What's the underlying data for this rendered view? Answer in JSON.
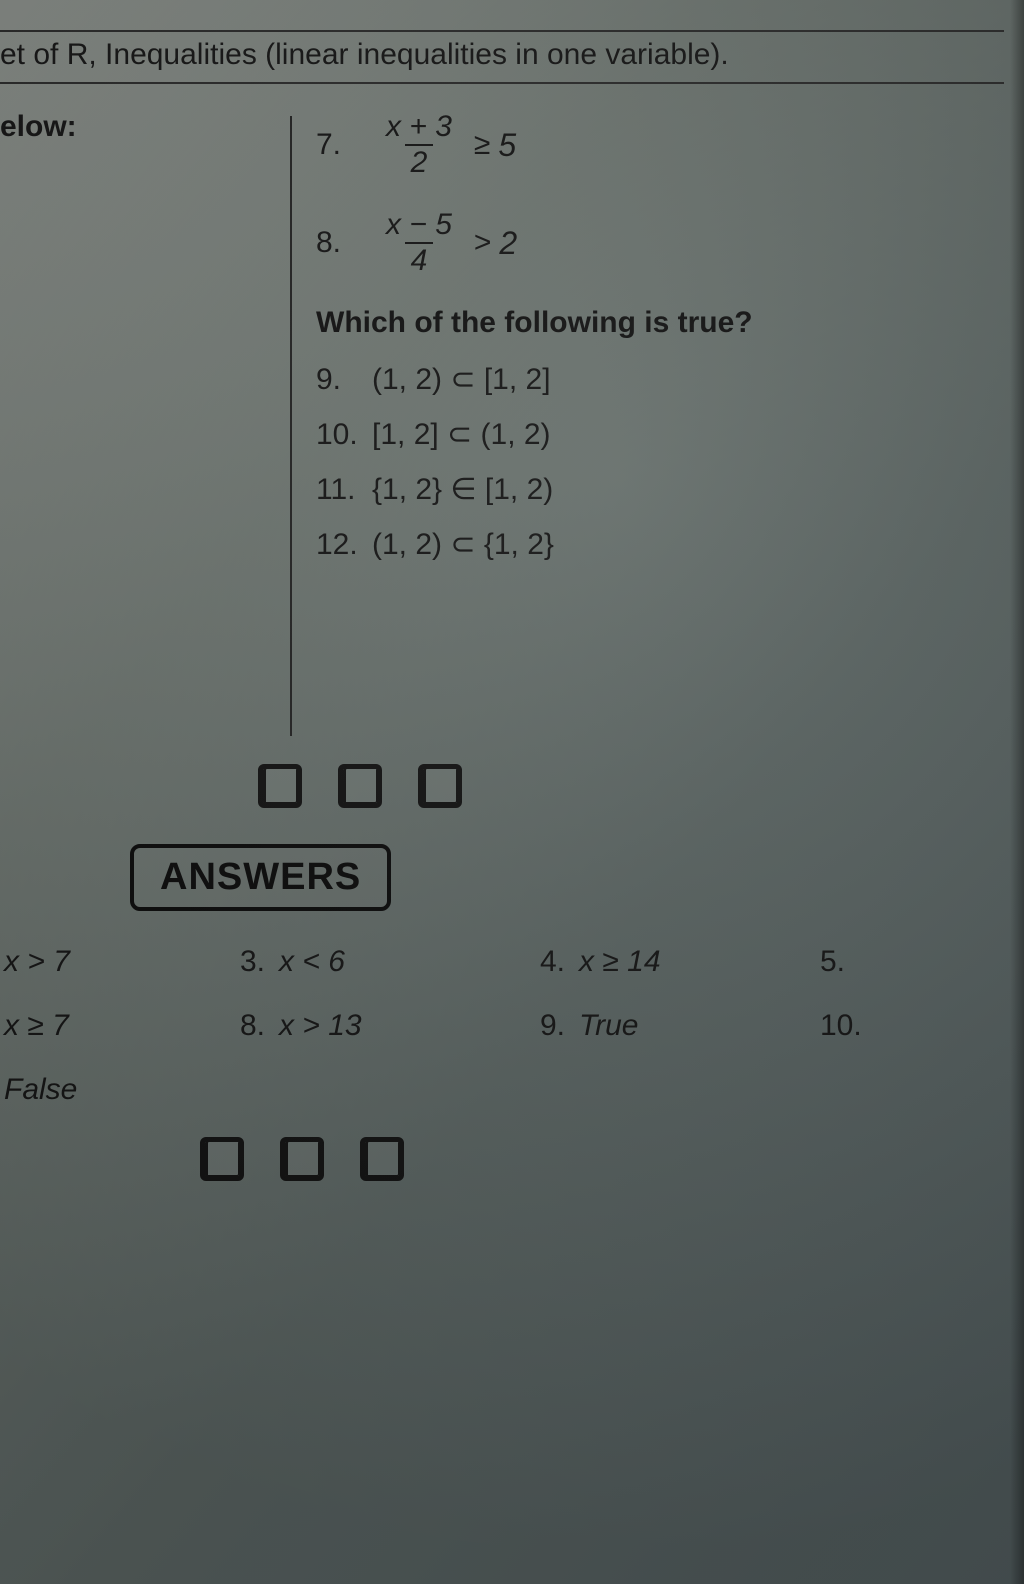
{
  "header": {
    "title": "et of R, Inequalities (linear inequalities in one variable)."
  },
  "left": {
    "below": "elow:"
  },
  "questions": {
    "q7": {
      "num": "7.",
      "frac_num": "x + 3",
      "frac_den": "2",
      "rel": "≥",
      "rhs": "5"
    },
    "q8": {
      "num": "8.",
      "frac_num": "x − 5",
      "frac_den": "4",
      "rel": ">",
      "rhs": "2"
    },
    "which": "Which of the following is true?",
    "q9": {
      "num": "9.",
      "body": "(1, 2) ⊂ [1, 2]"
    },
    "q10": {
      "num": "10.",
      "body": "[1, 2] ⊂ (1, 2)"
    },
    "q11": {
      "num": "11.",
      "body": "{1, 2} ∈ [1, 2)"
    },
    "q12": {
      "num": "12.",
      "body": "(1, 2) ⊂ {1, 2}"
    }
  },
  "answers": {
    "badge": "ANSWERS",
    "row1": {
      "c1_val": "x > 7",
      "c2_num": "3.",
      "c2_val": "x < 6",
      "c3_num": "4.",
      "c3_val": "x ≥ 14",
      "c4_num": "5."
    },
    "row2": {
      "c1_val": "x ≥ 7",
      "c2_num": "8.",
      "c2_val": "x > 13",
      "c3_num": "9.",
      "c3_val": "True",
      "c4_num": "10."
    },
    "row3": {
      "c1_val": "False"
    }
  },
  "style": {
    "text_color": "#141414",
    "rule_color": "#222222",
    "box_border": "#111111",
    "body_fontsize": 30,
    "badge_fontsize": 38
  }
}
